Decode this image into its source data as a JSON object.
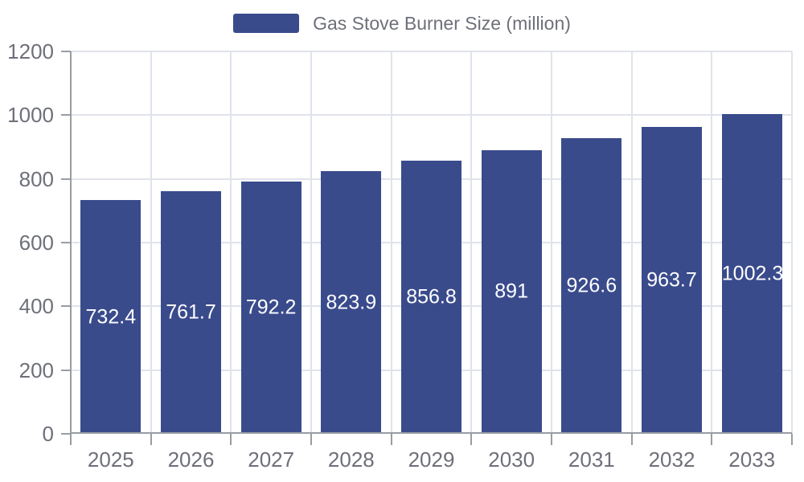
{
  "chart_data": {
    "type": "bar",
    "title": "Gas Stove Burner Size (million)",
    "legend": [
      "Gas Stove Burner Size (million)"
    ],
    "legend_position": "top-center",
    "categories": [
      "2025",
      "2026",
      "2027",
      "2028",
      "2029",
      "2030",
      "2031",
      "2032",
      "2033"
    ],
    "series": [
      {
        "name": "Gas Stove Burner Size (million)",
        "values": [
          732.4,
          761.7,
          792.2,
          823.9,
          856.8,
          891,
          926.6,
          963.7,
          1002.3
        ]
      }
    ],
    "value_labels": [
      "732.4",
      "761.7",
      "792.2",
      "823.9",
      "856.8",
      "891",
      "926.6",
      "963.7",
      "1002.3"
    ],
    "xlabel": "",
    "ylabel": "",
    "ylim": [
      0,
      1200
    ],
    "yticks": [
      0,
      200,
      400,
      600,
      800,
      1000,
      1200
    ],
    "grid": true,
    "bar_width_ratio": 0.75,
    "colors": {
      "bar": "#3A4B8C",
      "grid": "#E0E3EB",
      "axis": "#999CA3",
      "tick_text": "#6E7079",
      "bar_label": "#FFFFFF",
      "background": "#FFFFFF"
    }
  }
}
